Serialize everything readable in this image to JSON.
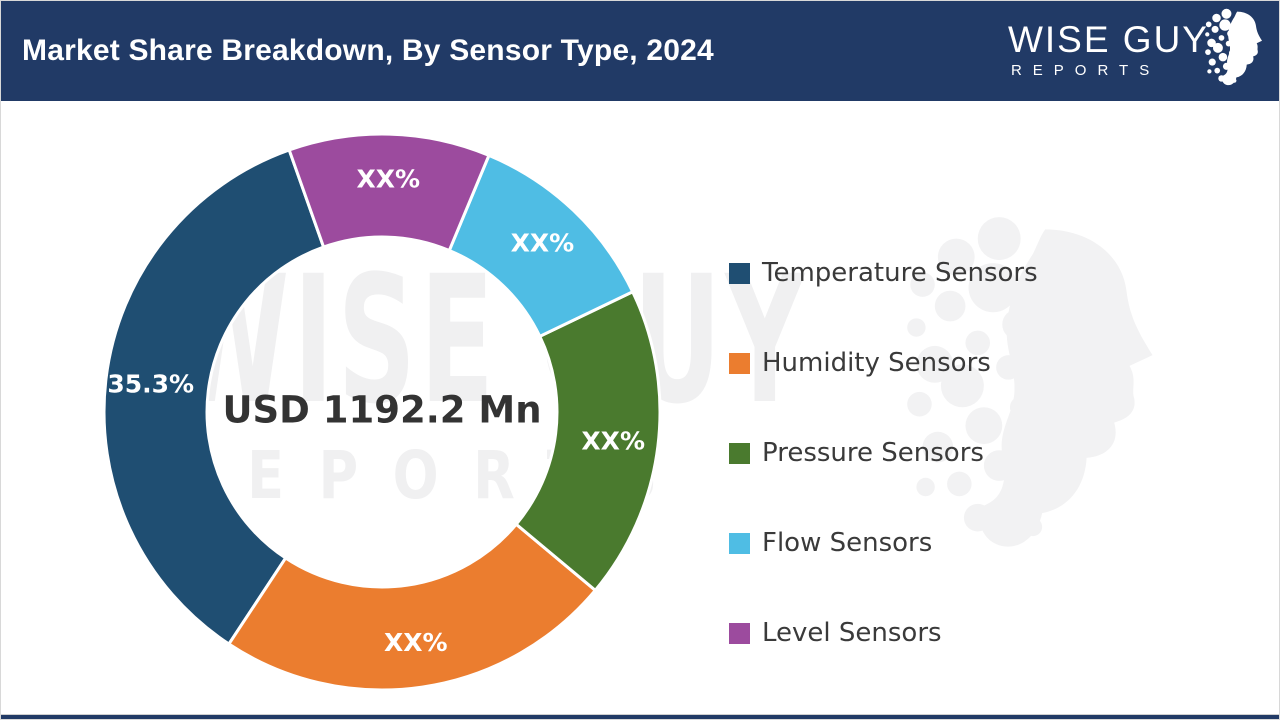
{
  "header": {
    "title": "Market Share Breakdown, By Sensor Type, 2024",
    "logo": {
      "line1": "WISE GUY",
      "line2": "REPORTS"
    }
  },
  "watermark": {
    "line1": "WISE GUY",
    "line2": "REPORTS"
  },
  "chart_data": {
    "type": "pie",
    "subtype": "donut",
    "center_label": "USD 1192.2 Mn",
    "start_angle_deg": 109.5,
    "direction": "counterclockwise",
    "legend_position": "right",
    "series": [
      {
        "name": "Temperature Sensors",
        "value_pct": 35.3,
        "label": "35.3%",
        "color": "#1f4e72"
      },
      {
        "name": "Humidity Sensors",
        "value_pct": 23.2,
        "label": "XX%",
        "color": "#eb7d2f"
      },
      {
        "name": "Pressure Sensors",
        "value_pct": 18.2,
        "label": "XX%",
        "color": "#4a7a2e"
      },
      {
        "name": "Flow Sensors",
        "value_pct": 11.6,
        "label": "XX%",
        "color": "#4fbde4"
      },
      {
        "name": "Level Sensors",
        "value_pct": 11.7,
        "label": "XX%",
        "color": "#9c4b9e"
      }
    ]
  }
}
